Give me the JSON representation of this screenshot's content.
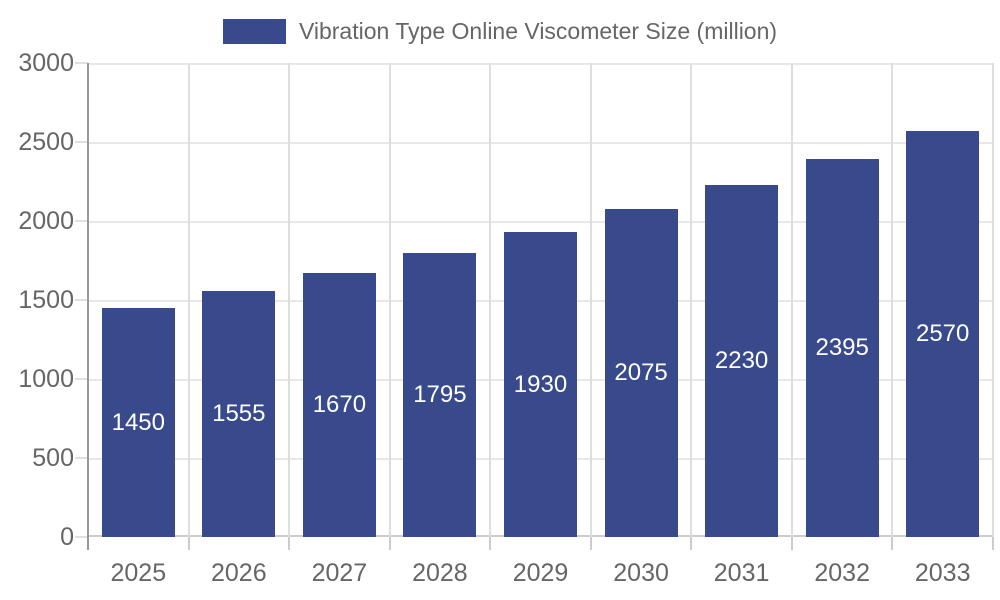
{
  "legend": {
    "label": "Vibration Type Online Viscometer Size (million)"
  },
  "chart_data": {
    "type": "bar",
    "title": "Vibration Type Online Viscometer Size (million)",
    "categories": [
      "2025",
      "2026",
      "2027",
      "2028",
      "2029",
      "2030",
      "2031",
      "2032",
      "2033"
    ],
    "values": [
      1450,
      1555,
      1670,
      1795,
      1930,
      2075,
      2230,
      2395,
      2570
    ],
    "value_labels": [
      "1450",
      "1555",
      "1670",
      "1795",
      "1930",
      "2075",
      "2230",
      "2395",
      "2570"
    ],
    "xlabel": "",
    "ylabel": "",
    "ylim": [
      0,
      3000
    ],
    "yticks": [
      0,
      500,
      1000,
      1500,
      2000,
      2500,
      3000
    ],
    "ytick_labels": [
      "0",
      "500",
      "1000",
      "1500",
      "2000",
      "2500",
      "3000"
    ],
    "grid": true,
    "legend_position": "top",
    "value_label_position": "center-of-bar"
  },
  "colors": {
    "bar": "#384a8c",
    "value_label": "#ffffff",
    "axis_label": "#666666",
    "gridline_h": "#e8e8e8",
    "gridline_v": "#dedede",
    "axis_line": "#999999",
    "tick": "#cccccc",
    "background": "#ffffff"
  }
}
